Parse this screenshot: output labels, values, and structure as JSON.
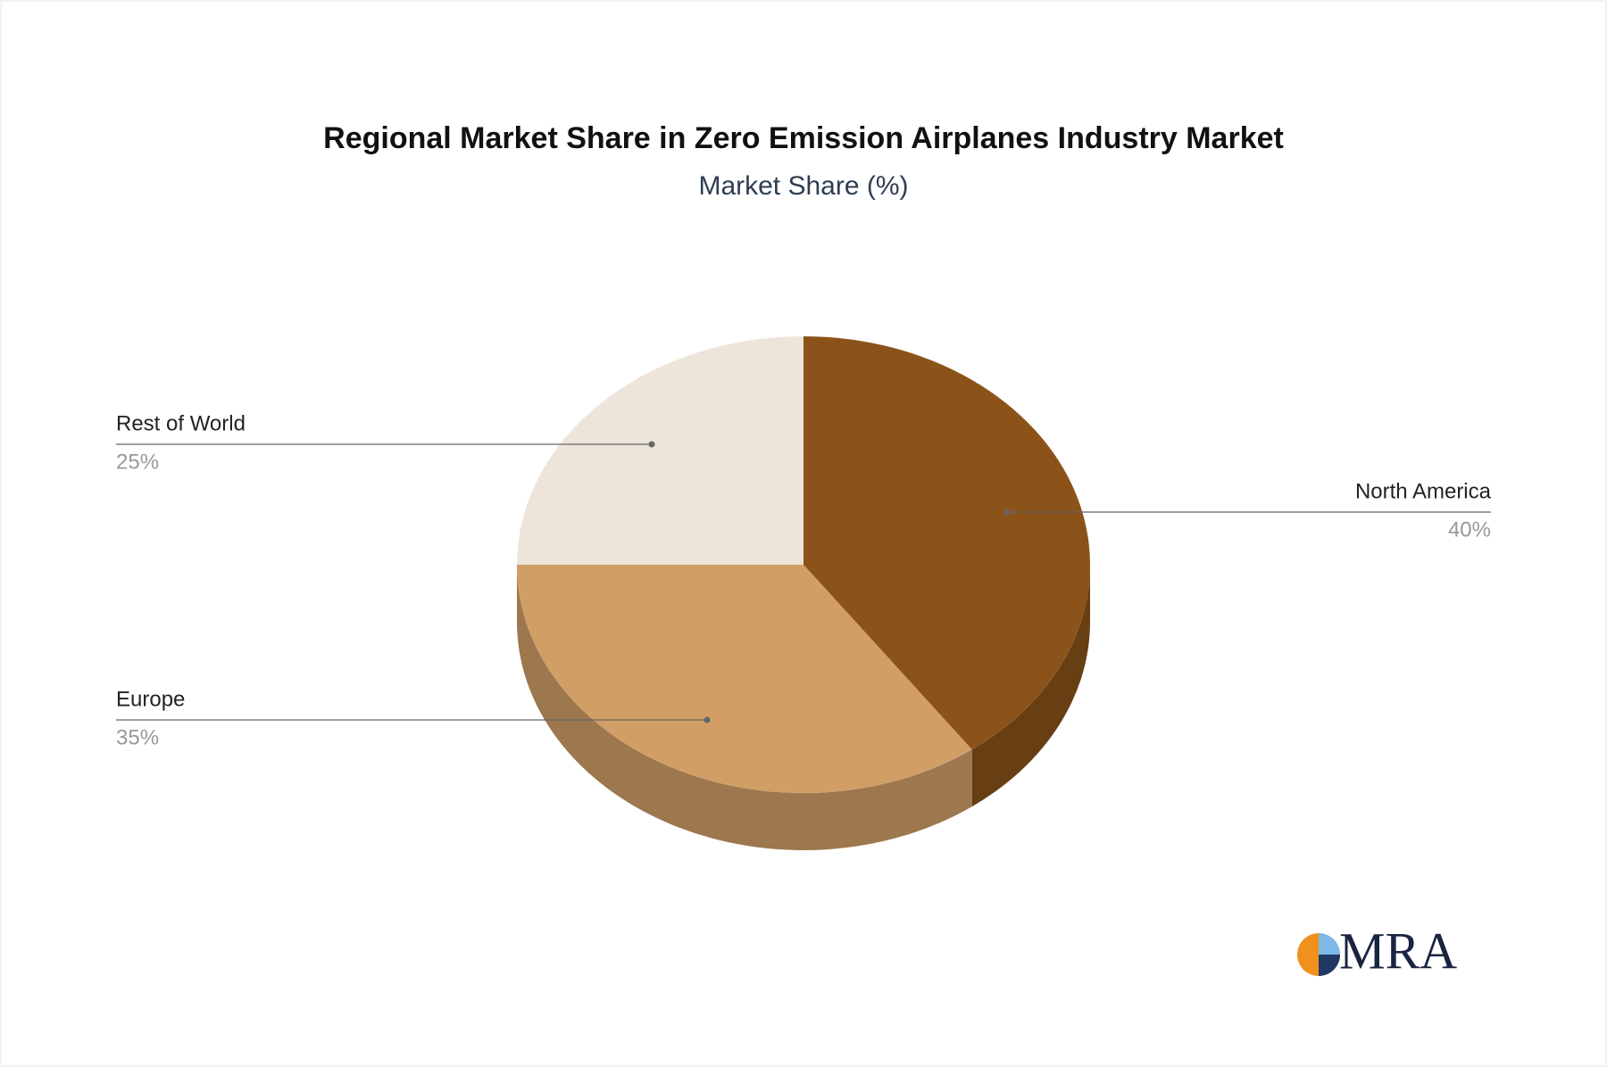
{
  "chart_data": {
    "type": "pie",
    "title": "Regional Market Share in Zero Emission Airplanes Industry Market",
    "subtitle": "Market Share (%)",
    "categories": [
      "North America",
      "Europe",
      "Rest of World"
    ],
    "values": [
      40,
      35,
      25
    ],
    "value_labels": [
      "40%",
      "35%",
      "25%"
    ],
    "colors": [
      "#8b5319",
      "#d19f66",
      "#ede4da"
    ]
  },
  "logo": "MRA"
}
